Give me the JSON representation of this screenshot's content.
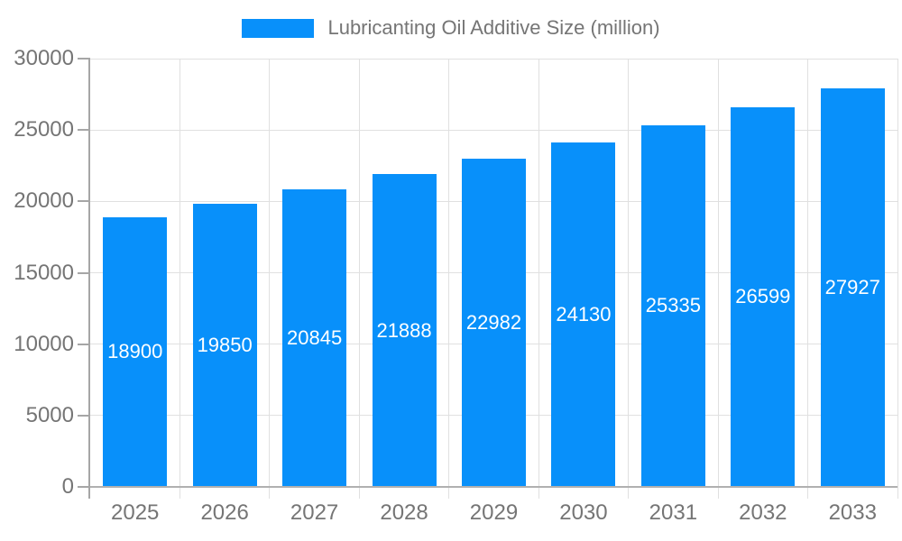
{
  "legend": {
    "label": "Lubricanting Oil Additive Size (million)"
  },
  "colors": {
    "bar": "#0890fa",
    "grid": "#e0e0e0",
    "axis": "#a6a6a6",
    "baseline": "#b0b0b0",
    "label_text": "#757575",
    "value_text": "#ffffff",
    "background": "#ffffff"
  },
  "chart_data": {
    "type": "bar",
    "title": "Lubricanting Oil Additive Size (million)",
    "categories": [
      "2025",
      "2026",
      "2027",
      "2028",
      "2029",
      "2030",
      "2031",
      "2032",
      "2033"
    ],
    "values": [
      18900,
      19850,
      20845,
      21888,
      22982,
      24130,
      25335,
      26599,
      27927
    ],
    "series_name": "Lubricanting Oil Additive Size (million)",
    "xlabel": "",
    "ylabel": "",
    "ylim": [
      0,
      30000
    ],
    "yticks": [
      0,
      5000,
      10000,
      15000,
      20000,
      25000,
      30000
    ],
    "grid": true,
    "legend_position": "top",
    "value_labels": "inside-center"
  }
}
